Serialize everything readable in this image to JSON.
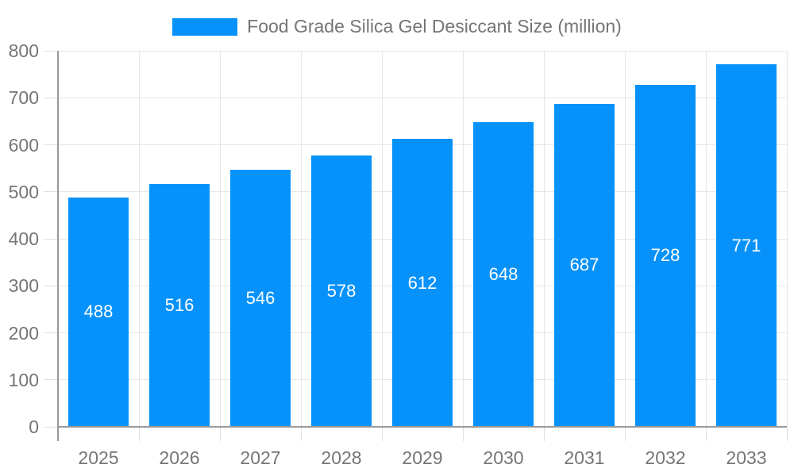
{
  "legend": {
    "label": "Food Grade Silica Gel Desiccant Size (million)"
  },
  "chart_data": {
    "type": "bar",
    "title": "Food Grade Silica Gel Desiccant Size (million)",
    "series_name": "Food Grade Silica Gel Desiccant Size (million)",
    "categories": [
      "2025",
      "2026",
      "2027",
      "2028",
      "2029",
      "2030",
      "2031",
      "2032",
      "2033"
    ],
    "values": [
      488,
      516,
      546,
      578,
      612,
      648,
      687,
      728,
      771
    ],
    "xlabel": "",
    "ylabel": "",
    "ylim": [
      0,
      800
    ],
    "ytick_step": 100,
    "yticks": [
      0,
      100,
      200,
      300,
      400,
      500,
      600,
      700,
      800
    ],
    "grid": true,
    "legend_position": "top",
    "colors": {
      "bar": "#0692fa",
      "value_label": "#ffffff",
      "axis_label": "#757575",
      "axis_line": "#999999",
      "gridline": "#e6e6e6",
      "tick": "#e0e0e0",
      "background": "#ffffff"
    }
  }
}
